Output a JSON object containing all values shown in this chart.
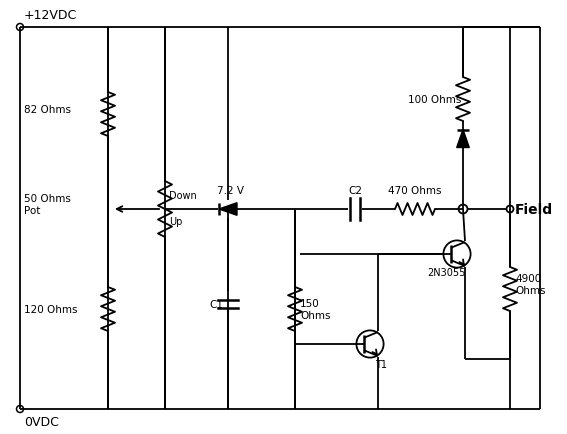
{
  "bg_color": "#ffffff",
  "line_color": "#000000",
  "plus12_label": "+12VDC",
  "zero_label": "0VDC",
  "field_label": "Field",
  "labels": {
    "82ohms": "82 Ohms",
    "50ohms": "50 Ohms\nPot",
    "120ohms": "120 Ohms",
    "down": "Down",
    "up": "Up",
    "7v2": "7.2 V",
    "C2": "C2",
    "470ohms": "470 Ohms",
    "100ohms": "100 Ohms",
    "C1": "C1",
    "150ohms": "150\nOhms",
    "4900ohms": "4900\nOhms",
    "2N3055": "2N3055",
    "T1": "T1"
  }
}
